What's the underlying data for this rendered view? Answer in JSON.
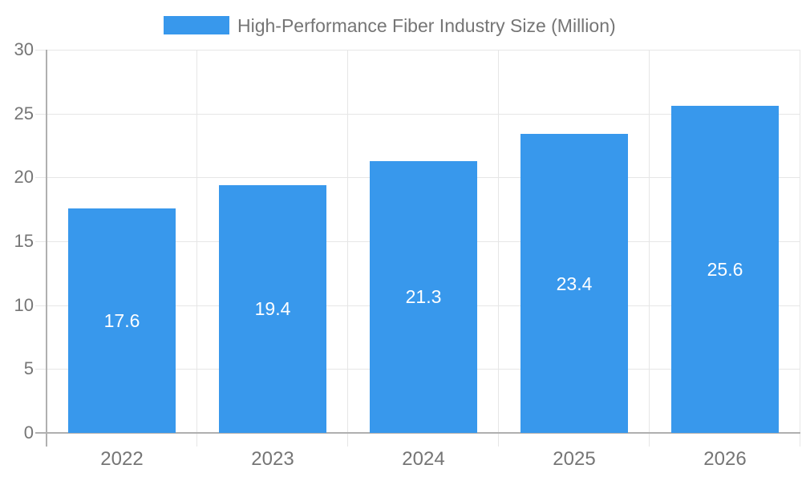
{
  "chart_data": {
    "type": "bar",
    "title": "High-Performance Fiber Industry Size (Million)",
    "legend_position": "top",
    "legend": [
      {
        "label": "High-Performance Fiber Industry Size (Million)",
        "color": "#3898EC"
      }
    ],
    "categories": [
      "2022",
      "2023",
      "2024",
      "2025",
      "2026"
    ],
    "series": [
      {
        "name": "High-Performance Fiber Industry Size (Million)",
        "values": [
          17.6,
          19.4,
          21.3,
          23.4,
          25.6
        ]
      }
    ],
    "value_labels": [
      "17.6",
      "19.4",
      "21.3",
      "23.4",
      "25.6"
    ],
    "xlabel": "",
    "ylabel": "",
    "ylim": [
      0,
      30
    ],
    "yticks": [
      0,
      5,
      10,
      15,
      20,
      25,
      30
    ],
    "grid": true,
    "colors": {
      "bar": "#3898EC",
      "value_label": "#FFFFFF",
      "axis_text": "#757575",
      "gridline": "#E6E6E6",
      "axis_line": "#B0B0B0",
      "background": "#FFFFFF"
    }
  }
}
